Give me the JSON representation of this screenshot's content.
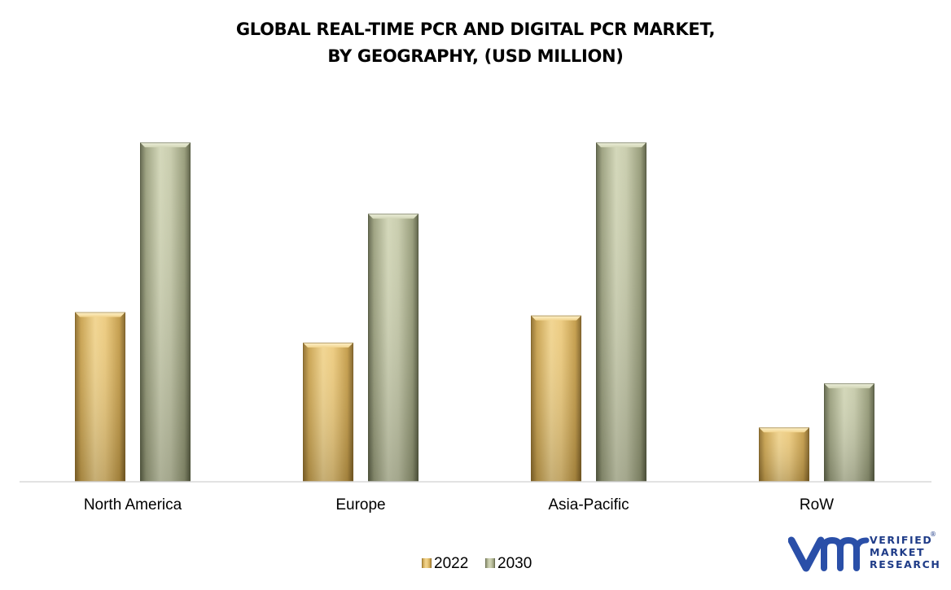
{
  "chart_data": {
    "type": "bar",
    "title_lines": [
      "GLOBAL REAL-TIME PCR AND DIGITAL PCR MARKET,",
      "BY GEOGRAPHY, (USD MILLION)"
    ],
    "categories": [
      "North America",
      "Europe",
      "Asia-Pacific",
      "RoW"
    ],
    "series": [
      {
        "name": "2022",
        "values": [
          50,
          41,
          49,
          16
        ]
      },
      {
        "name": "2030",
        "values": [
          100,
          79,
          100,
          29
        ]
      }
    ],
    "ylim": [
      0,
      100
    ],
    "y_axis_visible": false,
    "grid": false,
    "legend_position": "bottom",
    "colors": {
      "2022": {
        "light": "#f5dc9a",
        "mid": "#e4c06e",
        "dark": "#b8913d",
        "top": "#fbefc4"
      },
      "2030": {
        "light": "#d4d8b8",
        "mid": "#b9bf99",
        "dark": "#7f8563",
        "top": "#e6e9d2"
      }
    }
  },
  "branding": {
    "logo_mark": "vmr",
    "line1": "VERIFIED",
    "line2": "MARKET",
    "line3": "RESEARCH",
    "registered": "®"
  }
}
